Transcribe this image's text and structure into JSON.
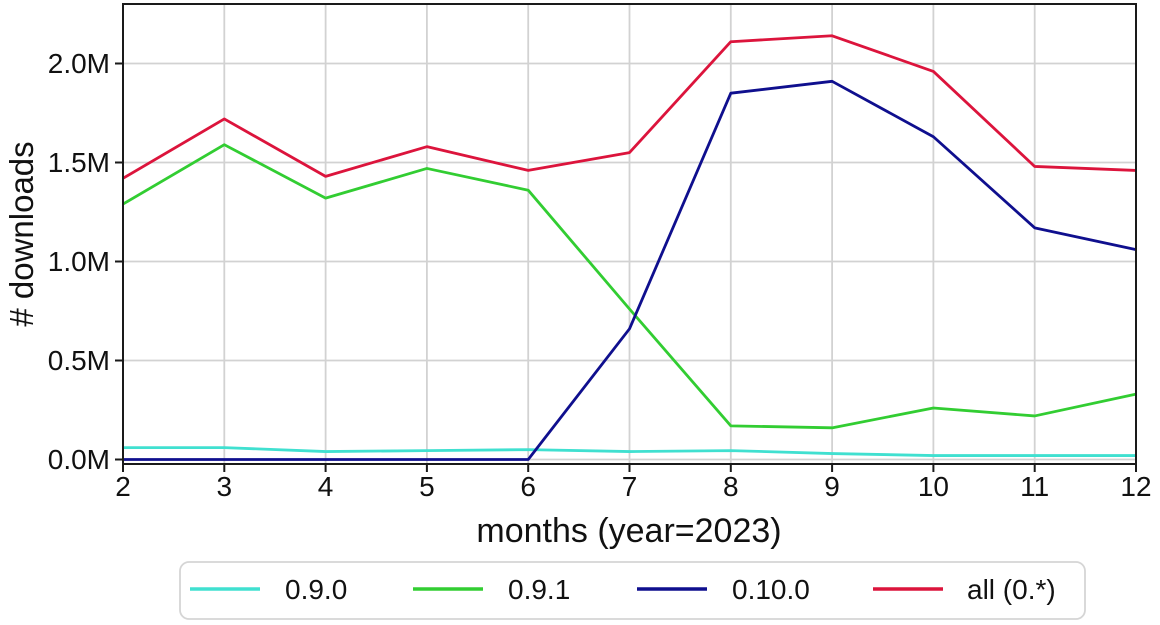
{
  "chart_data": {
    "type": "line",
    "title": "",
    "xlabel": "months (year=2023)",
    "ylabel": "# downloads",
    "x": [
      2,
      3,
      4,
      5,
      6,
      7,
      8,
      9,
      10,
      11,
      12
    ],
    "x_tick_labels": [
      "2",
      "3",
      "4",
      "5",
      "6",
      "7",
      "8",
      "9",
      "10",
      "11",
      "12"
    ],
    "y_ticks": [
      0.0,
      0.5,
      1.0,
      1.5,
      2.0
    ],
    "y_tick_labels": [
      "0.0M",
      "0.5M",
      "1.0M",
      "1.5M",
      "2.0M"
    ],
    "y_unit": "millions of downloads",
    "xlim": [
      2,
      12
    ],
    "ylim": [
      0,
      2.3
    ],
    "grid": true,
    "legend_position": "bottom-outside",
    "axis_color": "#1a1a1a",
    "grid_color": "#d2d2d2",
    "series": [
      {
        "name": "0.9.0",
        "color": "#40e0d0",
        "values_M": [
          0.06,
          0.06,
          0.04,
          0.045,
          0.05,
          0.04,
          0.045,
          0.03,
          0.02,
          0.02,
          0.02
        ]
      },
      {
        "name": "0.9.1",
        "color": "#32cd32",
        "values_M": [
          1.29,
          1.59,
          1.32,
          1.47,
          1.36,
          0.76,
          0.17,
          0.16,
          0.26,
          0.22,
          0.33
        ]
      },
      {
        "name": "0.10.0",
        "color": "#0f0f8e",
        "values_M": [
          0.0,
          0.0,
          0.0,
          0.0,
          0.0,
          0.66,
          1.85,
          1.91,
          1.63,
          1.17,
          1.06
        ]
      },
      {
        "name": "all (0.*)",
        "color": "#dc143c",
        "values_M": [
          1.42,
          1.72,
          1.43,
          1.58,
          1.46,
          1.55,
          2.11,
          2.14,
          1.96,
          1.48,
          1.46
        ]
      }
    ]
  }
}
